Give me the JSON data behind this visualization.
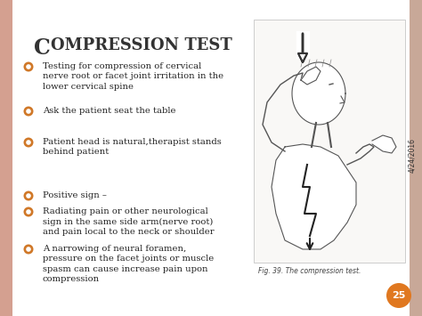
{
  "bg_color": "#f0e8e0",
  "slide_bg": "#ffffff",
  "left_border_color": "#d4a090",
  "right_border_color": "#c8a898",
  "title_color": "#333333",
  "bullet_color": "#d07828",
  "text_color": "#222222",
  "date_text": "4/24/2016",
  "page_num": "25",
  "page_circle_color": "#e07820",
  "fig_caption": "Fig. 39. The compression test.",
  "font_size_title": 13,
  "font_size_bullet": 7.2,
  "font_size_date": 5.5,
  "font_size_page": 8,
  "font_size_caption": 5.5,
  "bullet1": "Testing for compression of cervical\nnerve root or facet joint irritation in the\nlower cervical spine",
  "bullet2": "Ask the patient seat the table",
  "bullet3": "Patient head is natural,therapist stands\nbehind patient",
  "bullet4": "Positive sign –",
  "bullet5": "Radiating pain or other neurological\nsign in the same side arm(nerve root)\nand pain local to the neck or shoulder",
  "bullet6": "A narrowing of neural foramen,\npressure on the facet joints or muscle\nspasm can cause increase pain upon\ncompression",
  "title_C": "C",
  "title_rest": "OMPRESSION TEST"
}
